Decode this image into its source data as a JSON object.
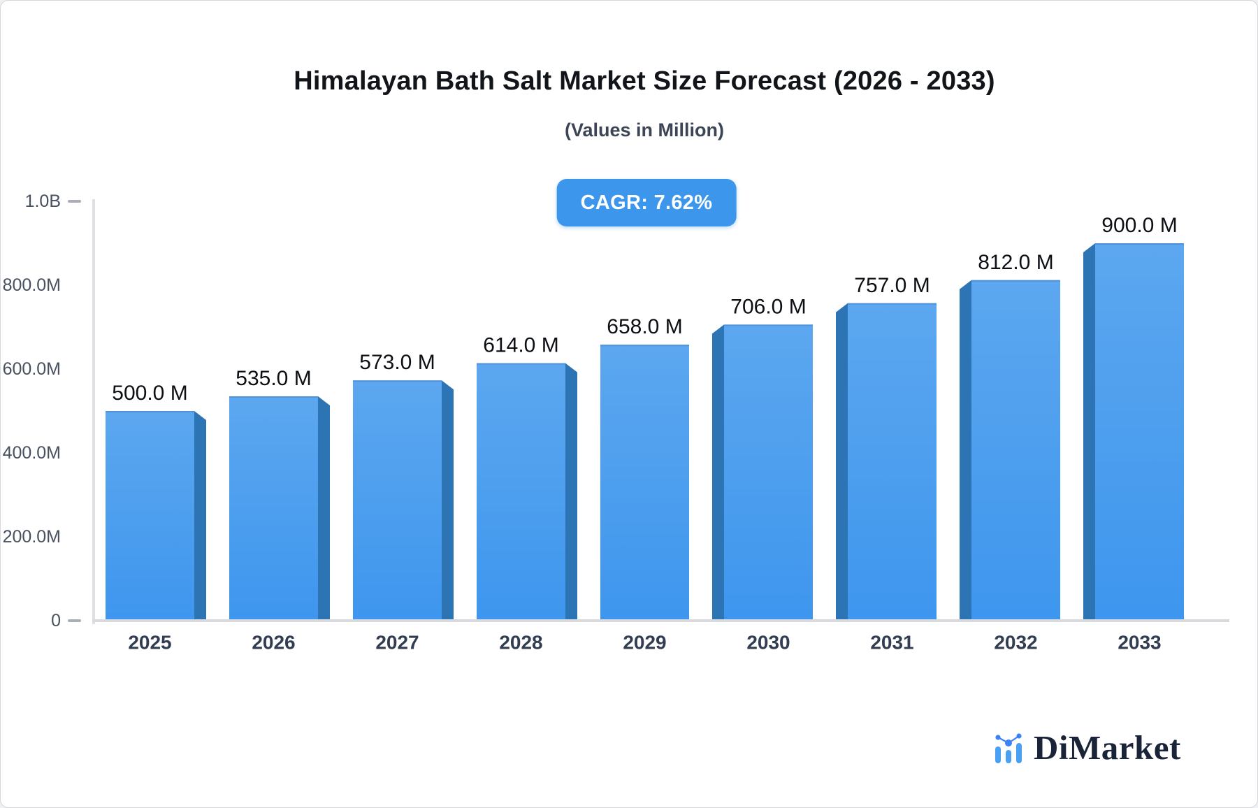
{
  "header": {
    "title": "Himalayan Bath Salt Market Size Forecast (2026 - 2033)",
    "subtitle": "(Values in Million)"
  },
  "badge": {
    "label": "CAGR: 7.62%",
    "bg_color": "#3C96EB"
  },
  "logo": {
    "text": "DiMarket",
    "icon": "mini-bar-chart-icon",
    "icon_color": "#4AA0F2",
    "text_color": "#1A2438"
  },
  "chart_data": {
    "type": "bar",
    "title": "Himalayan Bath Salt Market Size Forecast (2026 - 2033)",
    "subtitle": "(Values in Million)",
    "cagr": "7.62%",
    "categories": [
      "2025",
      "2026",
      "2027",
      "2028",
      "2029",
      "2030",
      "2031",
      "2032",
      "2033"
    ],
    "values": [
      500,
      535,
      573,
      614,
      658,
      706,
      757,
      812,
      900
    ],
    "value_labels": [
      "500.0 M",
      "535.0 M",
      "573.0 M",
      "614.0 M",
      "658.0 M",
      "706.0 M",
      "757.0 M",
      "812.0 M",
      "900.0 M"
    ],
    "unit": "Million",
    "xlabel": "",
    "ylabel": "",
    "ylim": [
      0,
      1000
    ],
    "yticks": [
      {
        "label": "0",
        "value": 0,
        "dash": true
      },
      {
        "label": "200.0M",
        "value": 200,
        "dash": false
      },
      {
        "label": "400.0M",
        "value": 400,
        "dash": false
      },
      {
        "label": "600.0M",
        "value": 600,
        "dash": false
      },
      {
        "label": "800.0M",
        "value": 800,
        "dash": false
      },
      {
        "label": "1.0B",
        "value": 1000,
        "dash": true
      }
    ],
    "grid": false,
    "legend": false,
    "bar_style": "3d-center-perspective",
    "colors": {
      "bar_front_top": "#5CA7EF",
      "bar_front_bottom": "#3E96EE",
      "bar_side": "#2D74B5",
      "bar_top_edge": "#4E8FD6",
      "axis_line": "#DFE0E4",
      "baseline": "#D9DADE",
      "tick": "#A9ADB8",
      "ytick_label": "#47505F",
      "xtick_label": "#323D51",
      "value_label": "#0C0F14"
    }
  }
}
